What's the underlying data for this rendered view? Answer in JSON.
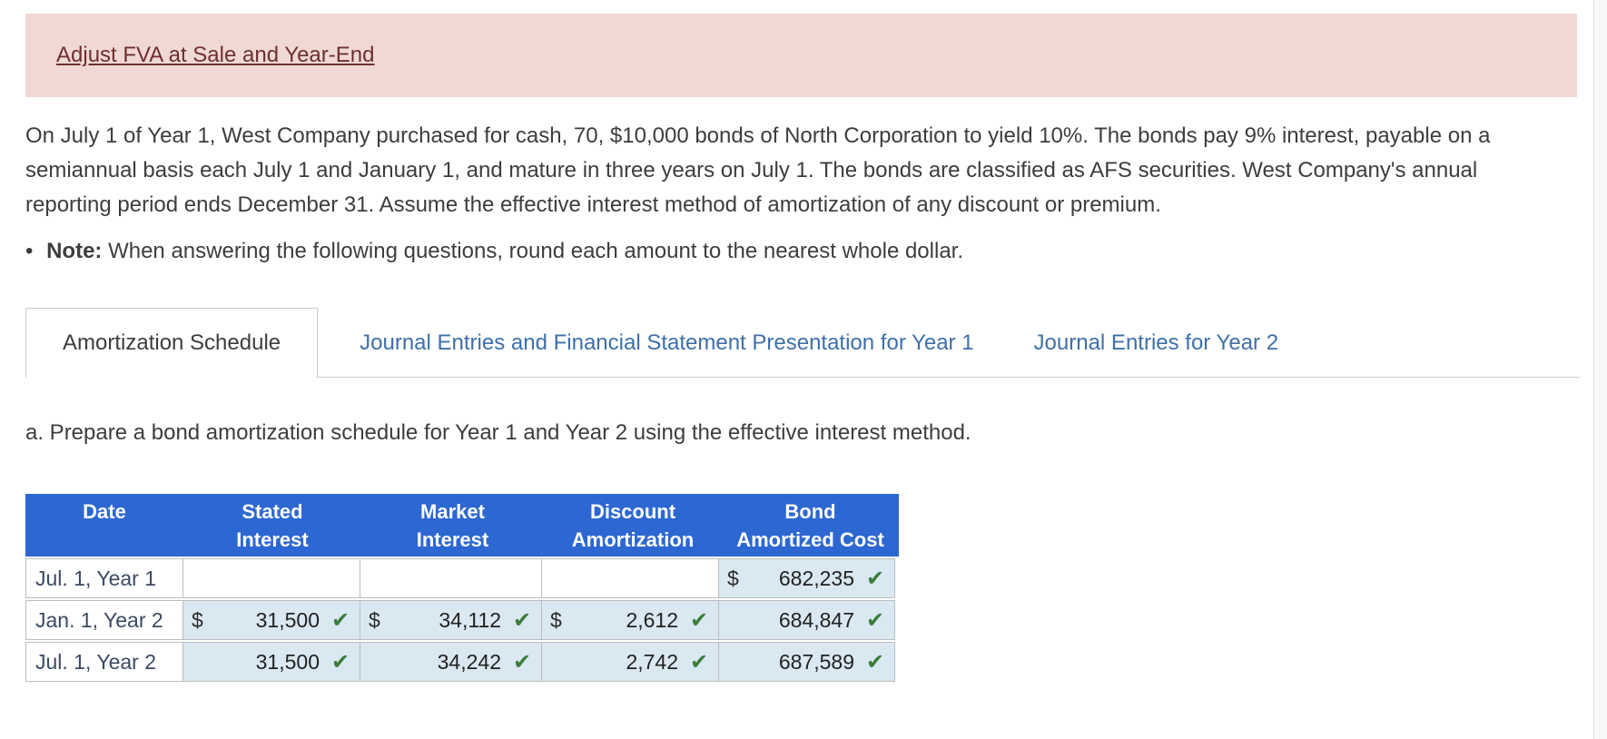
{
  "banner": {
    "link": "Adjust FVA at Sale and Year-End"
  },
  "problem": {
    "text": "On July 1 of Year 1, West Company purchased for cash, 70, $10,000 bonds of North Corporation to yield 10%. The bonds pay 9% interest, payable on a semiannual basis each July 1 and January 1, and mature in three years on July 1. The bonds are classified as AFS securities. West Company's annual reporting period ends December 31. Assume the effective interest method of amortization of any discount or premium.",
    "note": {
      "bullet": "•",
      "label": "Note:",
      "text": "When answering the following questions, round each amount to the nearest whole dollar."
    }
  },
  "tabs": {
    "amortization": "Amortization Schedule",
    "journal_year1": "Journal Entries and Financial Statement Presentation for Year 1",
    "journal_year2": "Journal Entries for Year 2"
  },
  "instruction": "a. Prepare a bond amortization schedule for Year 1 and Year 2 using the effective interest method.",
  "schedule": {
    "headers": {
      "date": {
        "line1": "Date",
        "line2": ""
      },
      "stated": {
        "line1": "Stated",
        "line2": "Interest"
      },
      "market": {
        "line1": "Market",
        "line2": "Interest"
      },
      "discount": {
        "line1": "Discount",
        "line2": "Amortization"
      },
      "bond": {
        "line1": "Bond",
        "line2": "Amortized Cost"
      }
    },
    "rows": [
      {
        "date": "Jul. 1, Year 1",
        "stated": {
          "dollar": "",
          "value": "",
          "check": ""
        },
        "market": {
          "dollar": "",
          "value": "",
          "check": ""
        },
        "discount": {
          "dollar": "",
          "value": "",
          "check": ""
        },
        "bond": {
          "dollar": "$",
          "value": "682,235",
          "check": "✔"
        }
      },
      {
        "date": "Jan. 1, Year 2",
        "stated": {
          "dollar": "$",
          "value": "31,500",
          "check": "✔"
        },
        "market": {
          "dollar": "$",
          "value": "34,112",
          "check": "✔"
        },
        "discount": {
          "dollar": "$",
          "value": "2,612",
          "check": "✔"
        },
        "bond": {
          "dollar": "",
          "value": "684,847",
          "check": "✔"
        }
      },
      {
        "date": "Jul. 1, Year 2",
        "stated": {
          "dollar": "",
          "value": "31,500",
          "check": "✔"
        },
        "market": {
          "dollar": "",
          "value": "34,242",
          "check": "✔"
        },
        "discount": {
          "dollar": "",
          "value": "2,742",
          "check": "✔"
        },
        "bond": {
          "dollar": "",
          "value": "687,589",
          "check": "✔"
        }
      }
    ]
  },
  "colors": {
    "banner_bg": "#f0d9d4",
    "banner_link": "#6e2f2f",
    "tab_link": "#3e70a8",
    "table_header_bg": "#2d67d2",
    "cell_bg": "#d9e8f1",
    "check_green": "#3c7d3c",
    "date_text": "#3b4a63"
  }
}
